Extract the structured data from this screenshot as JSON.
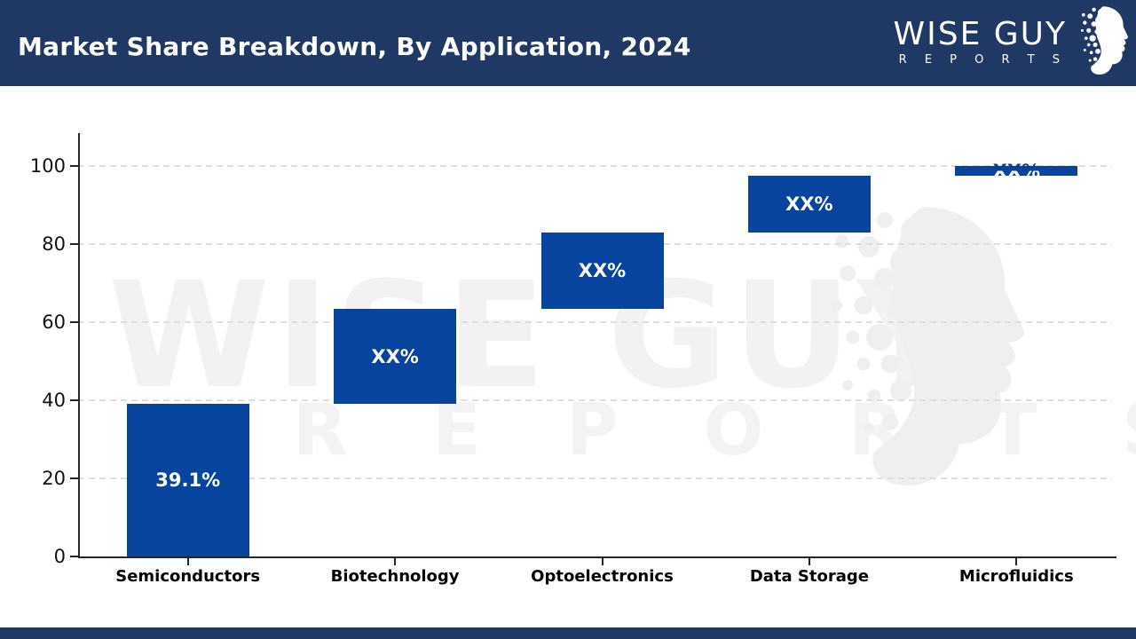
{
  "header": {
    "title": "Market Share Breakdown, By Application, 2024",
    "logo": {
      "line1": "WISE GUY",
      "line2": "R E P O R T S"
    }
  },
  "watermark": {
    "line1": "WISE GUY",
    "line2": "R E P O R T S"
  },
  "chart_data": {
    "type": "bar",
    "variant": "waterfall",
    "title": "Market Share Breakdown, By Application, 2024",
    "categories": [
      "Semiconductors",
      "Biotechnology",
      "Optoelectronics",
      "Data Storage",
      "Microfluidics"
    ],
    "segments": [
      {
        "category": "Semiconductors",
        "start": 0,
        "end": 39.1,
        "value": 39.1,
        "label": "39.1%"
      },
      {
        "category": "Biotechnology",
        "start": 39.1,
        "end": 63.3,
        "value": 24.2,
        "label": "XX%"
      },
      {
        "category": "Optoelectronics",
        "start": 63.3,
        "end": 83.0,
        "value": 19.7,
        "label": "XX%"
      },
      {
        "category": "Data Storage",
        "start": 83.0,
        "end": 97.5,
        "value": 14.5,
        "label": "XX%"
      },
      {
        "category": "Microfluidics",
        "start": 97.5,
        "end": 100,
        "value": 2.5,
        "label": "XX%"
      }
    ],
    "xlabel": "",
    "ylabel": "",
    "ylim": [
      0,
      100
    ],
    "yticks": [
      0,
      20,
      40,
      60,
      80,
      100
    ],
    "grid": {
      "horizontal": true,
      "style": "dashed"
    },
    "legend": "none"
  },
  "colors": {
    "header_bg": "#1f3864",
    "footer_bg": "#1f3864",
    "bar": "#07449e",
    "bar_label_text": "#ffffff",
    "bar_label_overflow": "#0a3f91",
    "axis": "#262626",
    "tick_text": "#111111",
    "gridline": "#dedede",
    "watermark": "#f2f2f2"
  }
}
